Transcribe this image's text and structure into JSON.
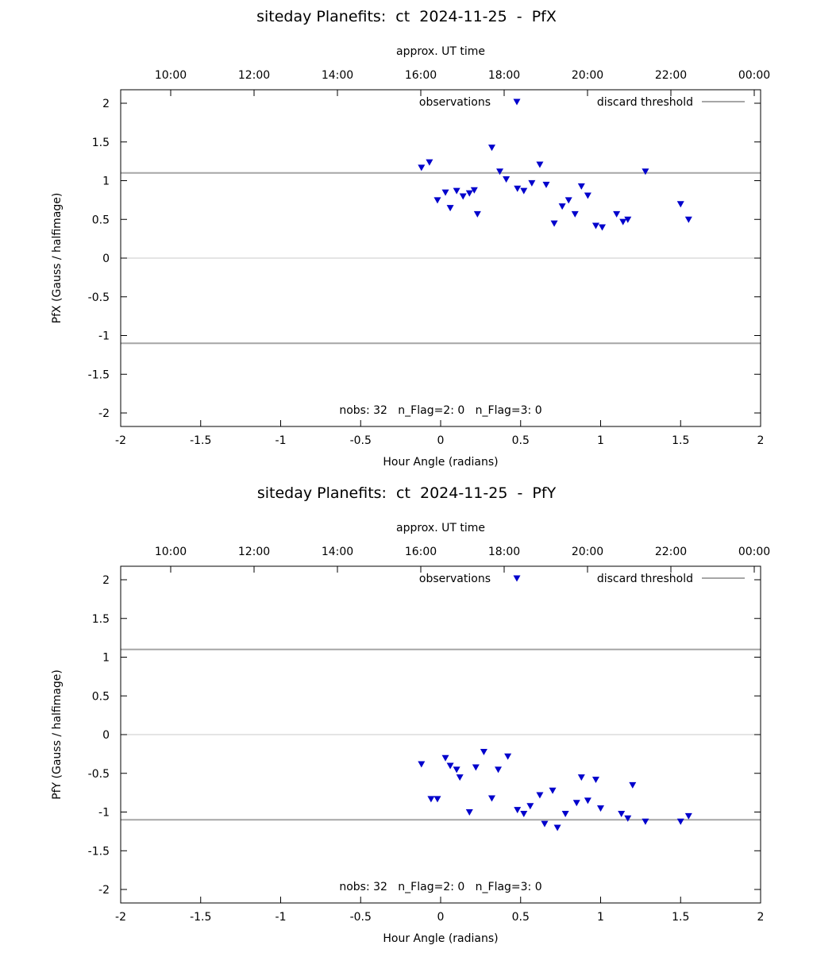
{
  "colors": {
    "marker_blue": "#0000cc",
    "threshold_gray": "#a6a6a6",
    "zero_line_gray": "#c8c8c8",
    "axis_black": "#000000"
  },
  "chart_data": [
    {
      "type": "scatter",
      "title": "siteday Planefits:  ct  2024-11-25  -  PfX",
      "top_axis_label": "approx. UT time",
      "top_axis_ticks": [
        "10:00",
        "12:00",
        "14:00",
        "16:00",
        "18:00",
        "20:00",
        "22:00",
        "00:00"
      ],
      "xlabel": "Hour Angle (radians)",
      "ylabel": "PfX (Gauss / halfimage)",
      "xlim": [
        -2,
        2
      ],
      "ylim": [
        -2.17,
        2.17
      ],
      "x_ticks": [
        -2,
        -1.5,
        -1,
        -0.5,
        0,
        0.5,
        1,
        1.5,
        2
      ],
      "y_ticks": [
        2,
        1.5,
        1,
        0.5,
        0,
        -0.5,
        -1,
        -1.5,
        -2
      ],
      "legend": [
        {
          "label": "observations",
          "marker": "triangle-down-icon"
        },
        {
          "label": "discard threshold",
          "marker": "gray-line"
        }
      ],
      "annotation": "nobs: 32   n_Flag=2: 0   n_Flag=3: 0",
      "discard_threshold": [
        1.1,
        -1.1
      ],
      "zero_line": 0,
      "grid": false,
      "legend_position": "top-right-inside",
      "series": [
        {
          "name": "observations",
          "points": [
            [
              -0.12,
              1.17
            ],
            [
              -0.07,
              1.24
            ],
            [
              -0.02,
              0.75
            ],
            [
              0.03,
              0.85
            ],
            [
              0.06,
              0.65
            ],
            [
              0.1,
              0.87
            ],
            [
              0.14,
              0.8
            ],
            [
              0.18,
              0.84
            ],
            [
              0.21,
              0.88
            ],
            [
              0.23,
              0.57
            ],
            [
              0.32,
              1.43
            ],
            [
              0.37,
              1.12
            ],
            [
              0.41,
              1.02
            ],
            [
              0.48,
              0.9
            ],
            [
              0.52,
              0.87
            ],
            [
              0.57,
              0.97
            ],
            [
              0.62,
              1.21
            ],
            [
              0.66,
              0.95
            ],
            [
              0.71,
              0.45
            ],
            [
              0.76,
              0.67
            ],
            [
              0.8,
              0.75
            ],
            [
              0.84,
              0.57
            ],
            [
              0.88,
              0.93
            ],
            [
              0.92,
              0.81
            ],
            [
              0.97,
              0.42
            ],
            [
              1.01,
              0.4
            ],
            [
              1.1,
              0.57
            ],
            [
              1.14,
              0.47
            ],
            [
              1.17,
              0.5
            ],
            [
              1.28,
              1.12
            ],
            [
              1.5,
              0.7
            ],
            [
              1.55,
              0.5
            ]
          ]
        }
      ]
    },
    {
      "type": "scatter",
      "title": "siteday Planefits:  ct  2024-11-25  -  PfY",
      "top_axis_label": "approx. UT time",
      "top_axis_ticks": [
        "10:00",
        "12:00",
        "14:00",
        "16:00",
        "18:00",
        "20:00",
        "22:00",
        "00:00"
      ],
      "xlabel": "Hour Angle (radians)",
      "ylabel": "PfY (Gauss / halfimage)",
      "xlim": [
        -2,
        2
      ],
      "ylim": [
        -2.17,
        2.17
      ],
      "x_ticks": [
        -2,
        -1.5,
        -1,
        -0.5,
        0,
        0.5,
        1,
        1.5,
        2
      ],
      "y_ticks": [
        2,
        1.5,
        1,
        0.5,
        0,
        -0.5,
        -1,
        -1.5,
        -2
      ],
      "legend": [
        {
          "label": "observations",
          "marker": "triangle-down-icon"
        },
        {
          "label": "discard threshold",
          "marker": "gray-line"
        }
      ],
      "annotation": "nobs: 32   n_Flag=2: 0   n_Flag=3: 0",
      "discard_threshold": [
        1.1,
        -1.1
      ],
      "zero_line": 0,
      "grid": false,
      "legend_position": "top-right-inside",
      "series": [
        {
          "name": "observations",
          "points": [
            [
              -0.12,
              -0.38
            ],
            [
              -0.06,
              -0.83
            ],
            [
              -0.02,
              -0.83
            ],
            [
              0.03,
              -0.3
            ],
            [
              0.06,
              -0.4
            ],
            [
              0.1,
              -0.45
            ],
            [
              0.12,
              -0.55
            ],
            [
              0.18,
              -1.0
            ],
            [
              0.22,
              -0.42
            ],
            [
              0.27,
              -0.22
            ],
            [
              0.32,
              -0.82
            ],
            [
              0.36,
              -0.45
            ],
            [
              0.42,
              -0.28
            ],
            [
              0.48,
              -0.97
            ],
            [
              0.52,
              -1.02
            ],
            [
              0.56,
              -0.92
            ],
            [
              0.62,
              -0.78
            ],
            [
              0.65,
              -1.15
            ],
            [
              0.7,
              -0.72
            ],
            [
              0.73,
              -1.2
            ],
            [
              0.78,
              -1.02
            ],
            [
              0.85,
              -0.88
            ],
            [
              0.88,
              -0.55
            ],
            [
              0.92,
              -0.85
            ],
            [
              0.97,
              -0.58
            ],
            [
              1.0,
              -0.95
            ],
            [
              1.13,
              -1.02
            ],
            [
              1.17,
              -1.08
            ],
            [
              1.2,
              -0.65
            ],
            [
              1.28,
              -1.12
            ],
            [
              1.5,
              -1.12
            ],
            [
              1.55,
              -1.05
            ]
          ]
        }
      ]
    }
  ]
}
